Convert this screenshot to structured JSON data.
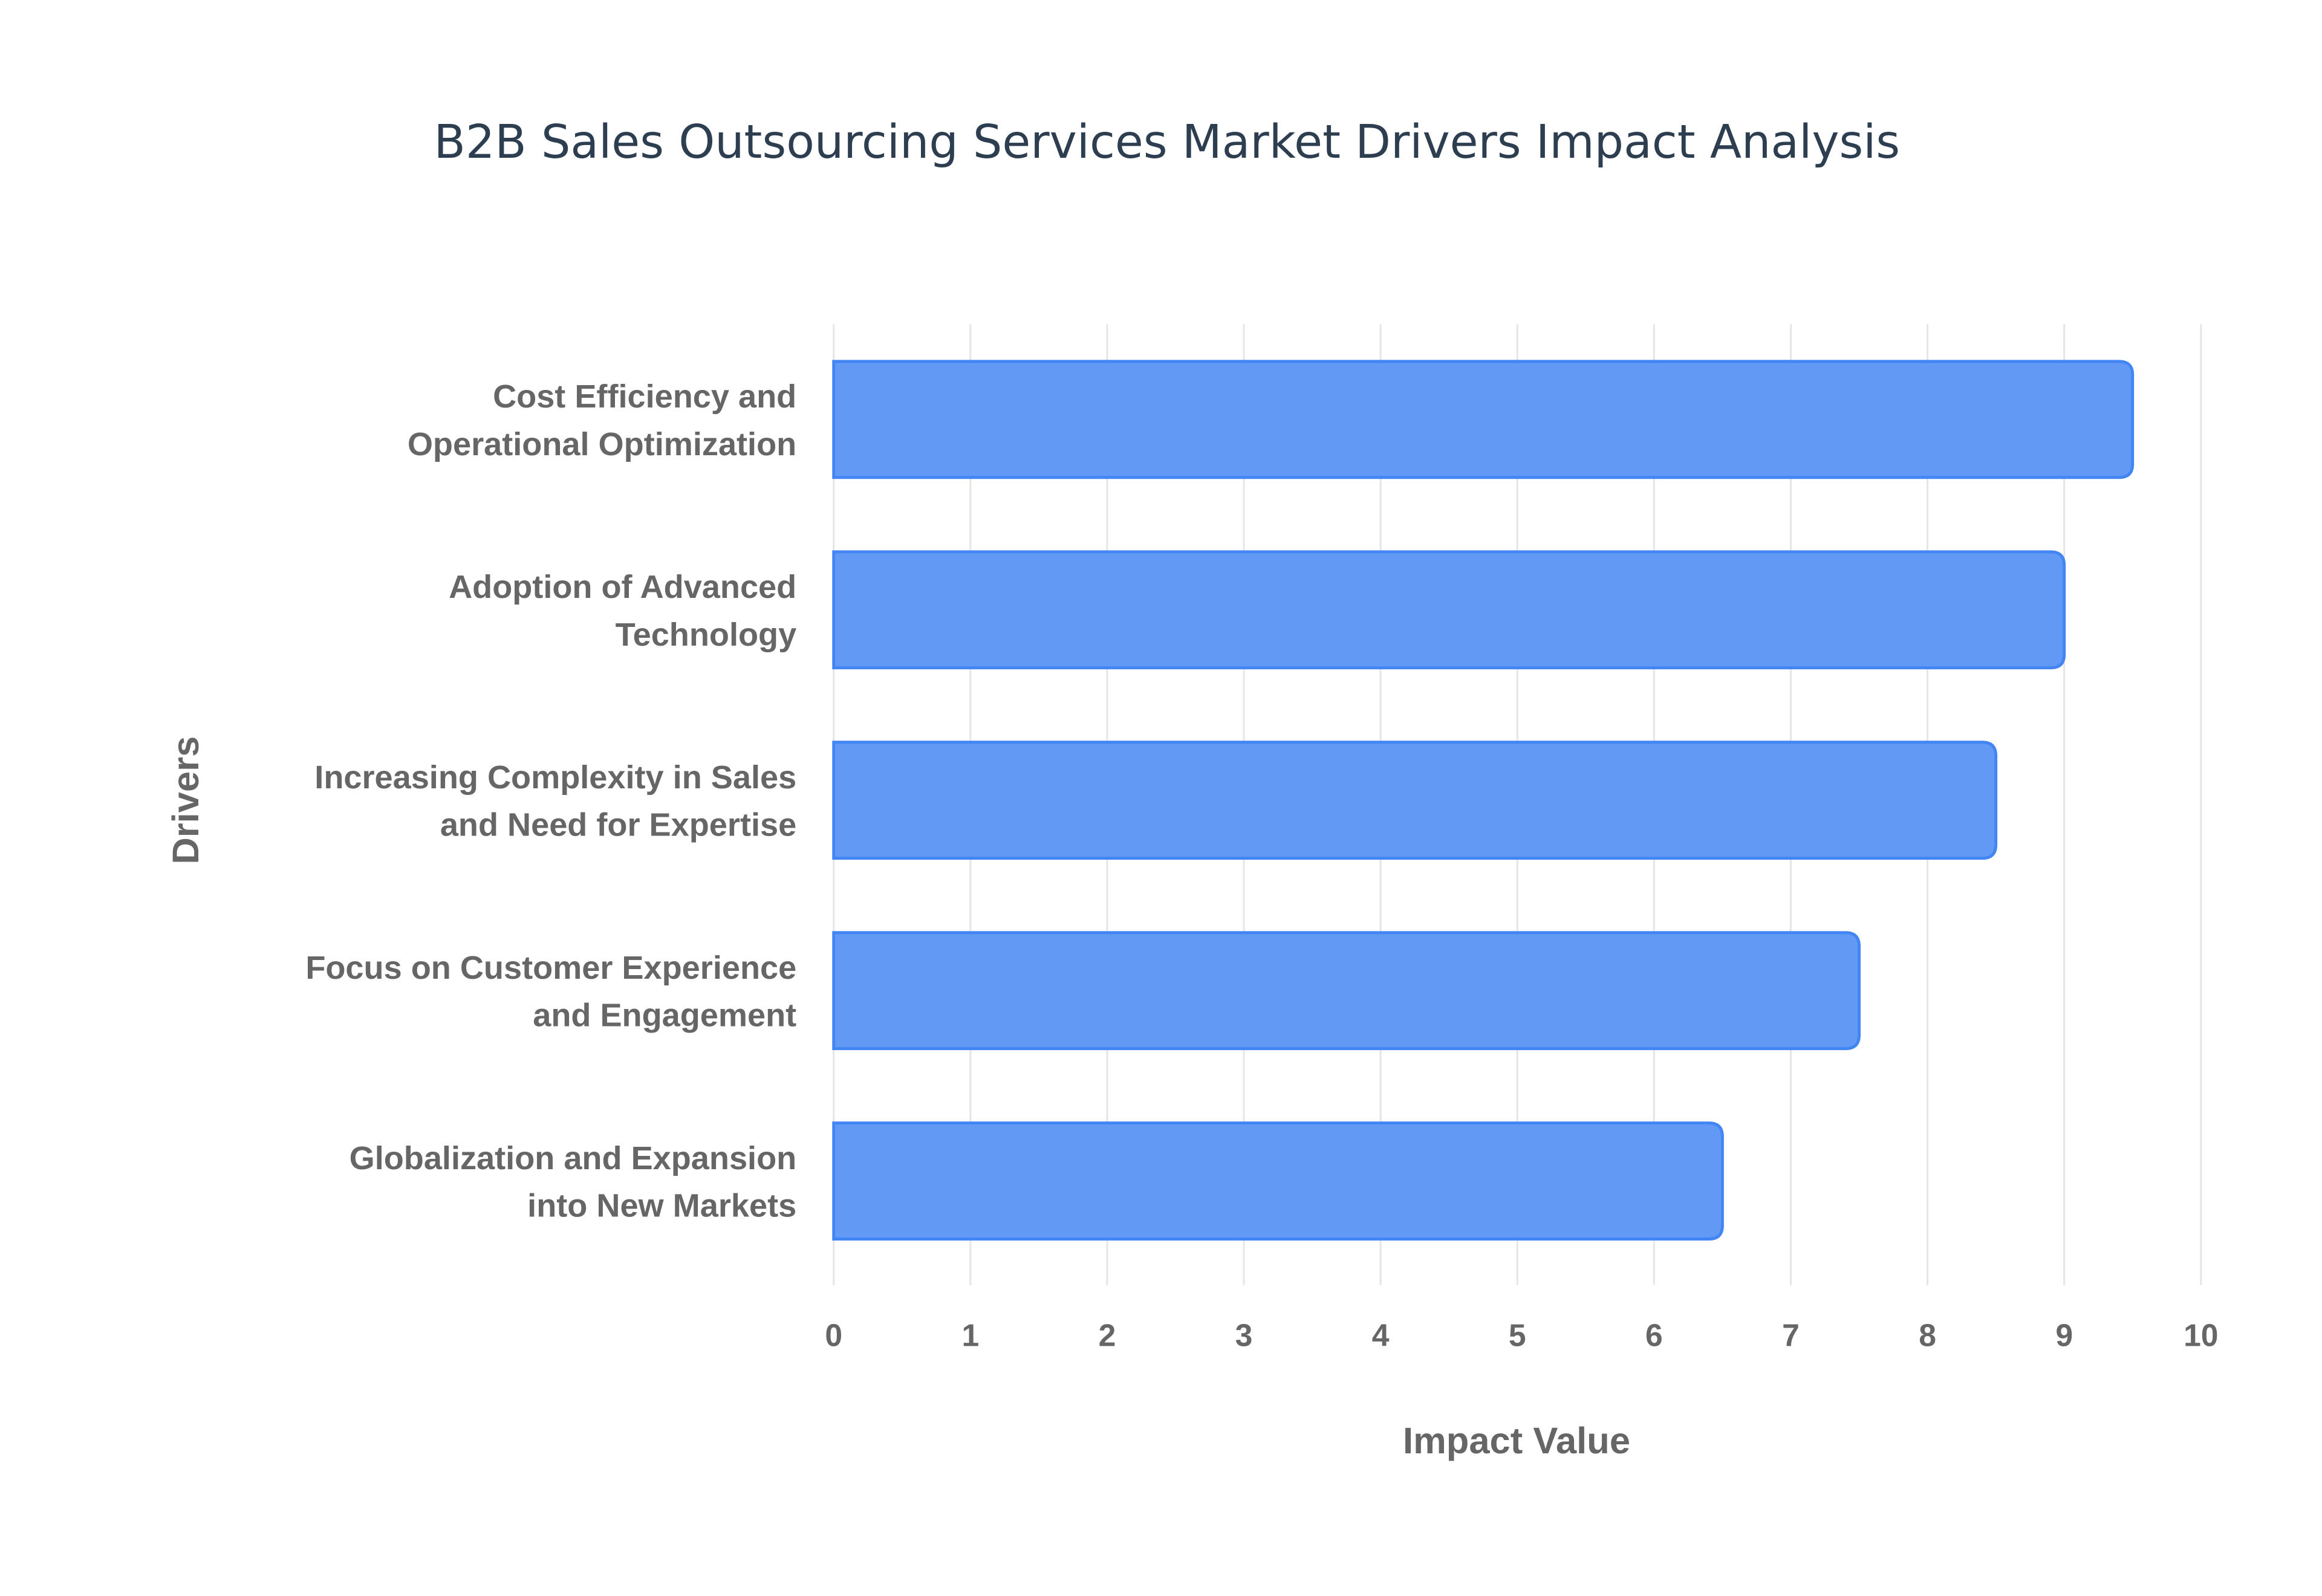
{
  "chart_data": {
    "type": "bar",
    "orientation": "horizontal",
    "title": "B2B Sales Outsourcing Services Market Drivers Impact Analysis",
    "xlabel": "Impact Value",
    "ylabel": "Drivers",
    "xlim": [
      0,
      10
    ],
    "xticks": [
      "0",
      "1",
      "2",
      "3",
      "4",
      "5",
      "6",
      "7",
      "8",
      "9",
      "10"
    ],
    "grid": true,
    "categories": [
      [
        "Cost Efficiency and",
        "Operational Optimization"
      ],
      [
        "Adoption of Advanced",
        "Technology"
      ],
      [
        "Increasing Complexity in Sales",
        "and Need for Expertise"
      ],
      [
        "Focus on Customer Experience",
        "and Engagement"
      ],
      [
        "Globalization and Expansion",
        "into New Markets"
      ]
    ],
    "values": [
      9.5,
      9.0,
      8.5,
      7.5,
      6.5
    ],
    "colors": {
      "bar_fill": "#6199f5",
      "bar_border": "#4285f4",
      "grid": "#e5e5e5"
    }
  }
}
